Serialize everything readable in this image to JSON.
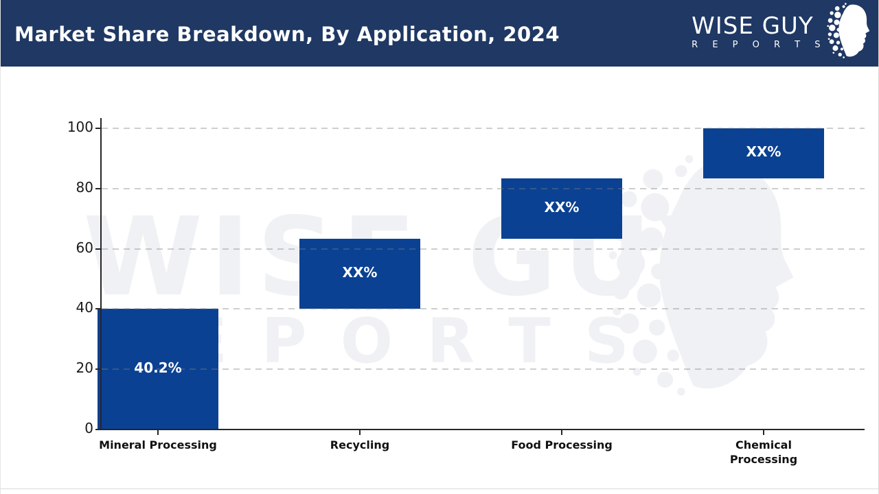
{
  "header": {
    "title": "Market Share Breakdown, By Application, 2024",
    "logo": {
      "line1": "WISE GUY",
      "line2": "R E P O R T S"
    }
  },
  "watermark": {
    "line1": "WISE GUY",
    "line2": "R E P O R T S"
  },
  "colors": {
    "header_bg": "#1f3864",
    "bar": "#0b4192",
    "bar_label": "#ffffff",
    "axis": "#262626",
    "title": "#ffffff",
    "watermark": "#f0f1f4"
  },
  "chart_data": {
    "type": "bar",
    "subtype": "waterfall",
    "title": "Market Share Breakdown, By Application, 2024",
    "categories": [
      "Mineral Processing",
      "Recycling",
      "Food Processing",
      "Chemical Processing"
    ],
    "x_tick_labels": [
      "Mineral Processing",
      "Recycling",
      "Food Processing",
      "Chemical\nProcessing"
    ],
    "segments": [
      {
        "category": "Mineral Processing",
        "start": 0,
        "end": 40.2,
        "value": 40.2,
        "bar_label": "40.2%"
      },
      {
        "category": "Recycling",
        "start": 40.2,
        "end": 63.3,
        "value": 23.1,
        "bar_label": "XX%"
      },
      {
        "category": "Food Processing",
        "start": 63.3,
        "end": 83.4,
        "value": 20.1,
        "bar_label": "XX%"
      },
      {
        "category": "Chemical Processing",
        "start": 83.4,
        "end": 100.0,
        "value": 16.6,
        "bar_label": "XX%"
      }
    ],
    "y_ticks": [
      0,
      20,
      40,
      60,
      80,
      100
    ],
    "ylim": [
      0,
      103.5
    ],
    "xlabel": "",
    "ylabel": "",
    "grid": "horizontal-dashed",
    "legend": "none",
    "bar_color": "#0b4192",
    "bar_label_color": "#ffffff"
  }
}
